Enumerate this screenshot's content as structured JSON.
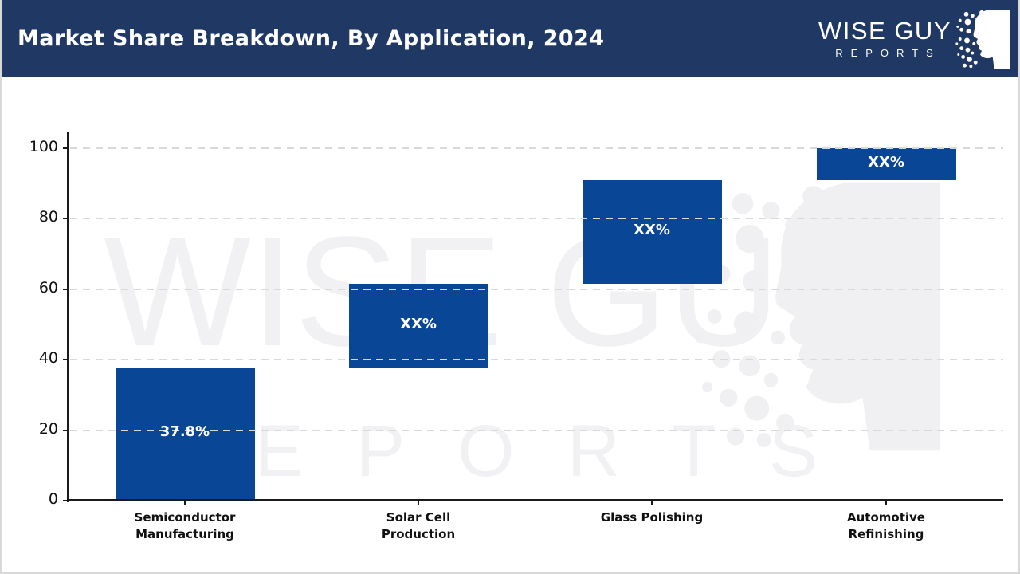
{
  "header": {
    "title": "Market Share Breakdown, By Application, 2024",
    "logo": {
      "wordmark": "WISE GUY",
      "subtext": "REPORTS"
    }
  },
  "watermark": {
    "line1": "WISE GUY",
    "line2": "REPORTS"
  },
  "colors": {
    "header_bg": "#1F3864",
    "bar": "#0A4696",
    "bar_label": "#ffffff",
    "axis": "#1a1a1a",
    "grid": "#d9d9d9",
    "tick_text": "#111111",
    "watermark": "#f1f1f4",
    "page_border": "#d9d9d9"
  },
  "chart_data": {
    "type": "bar",
    "subtype": "floating-waterfall",
    "title": "Market Share Breakdown, By Application, 2024",
    "categories": [
      [
        "Semiconductor",
        "Manufacturing"
      ],
      [
        "Solar Cell",
        "Production"
      ],
      [
        "Glass Polishing"
      ],
      [
        "Automotive",
        "Refinishing"
      ]
    ],
    "segments": [
      {
        "category": "Semiconductor Manufacturing",
        "start": 0,
        "end": 37.8,
        "label": "37.8%"
      },
      {
        "category": "Solar Cell Production",
        "start": 37.8,
        "end": 61.5,
        "label": "XX%"
      },
      {
        "category": "Glass Polishing",
        "start": 61.5,
        "end": 91,
        "label": "XX%"
      },
      {
        "category": "Automotive Refinishing",
        "start": 91,
        "end": 100,
        "label": "XX%"
      }
    ],
    "y_ticks": [
      0,
      20,
      40,
      60,
      80,
      100
    ],
    "ylim": [
      0,
      105
    ],
    "xlabel": "",
    "ylabel": "",
    "grid": "horizontal-dashed",
    "legend": "none"
  }
}
